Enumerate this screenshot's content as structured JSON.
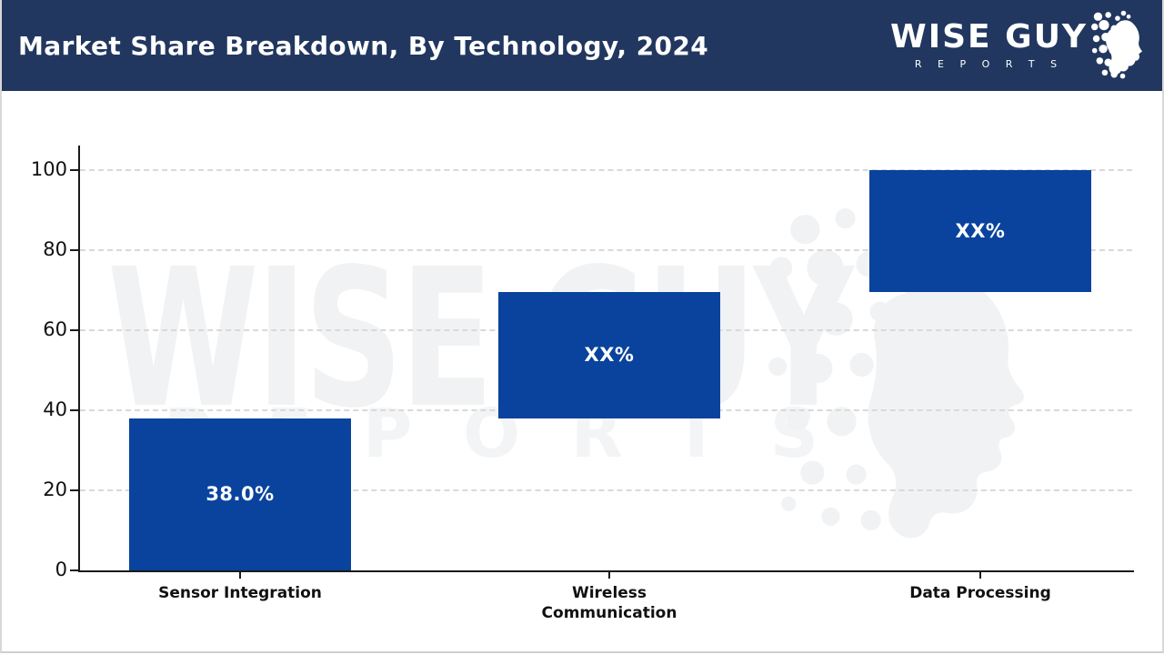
{
  "header": {
    "title": "Market Share Breakdown, By Technology, 2024",
    "logo": {
      "name": "WISE GUY",
      "subtitle": "R E P O R T S"
    },
    "background": "#21375f"
  },
  "watermark": {
    "line1": "WISE GUY",
    "line2": "R E P O R T S"
  },
  "chart_data": {
    "type": "bar",
    "subtype": "floating-waterfall",
    "title": "Market Share Breakdown, By Technology, 2024",
    "categories": [
      "Sensor Integration",
      "Wireless\nCommunication",
      "Data Processing"
    ],
    "bars": [
      {
        "category": "Sensor Integration",
        "start": 0,
        "end": 38,
        "label": "38.0%"
      },
      {
        "category": "Wireless Communication",
        "start": 38,
        "end": 69.5,
        "label": "XX%"
      },
      {
        "category": "Data Processing",
        "start": 69.5,
        "end": 100,
        "label": "XX%"
      }
    ],
    "yticks": [
      0,
      20,
      40,
      60,
      80,
      100
    ],
    "ylim": [
      0,
      106
    ],
    "xlabel": "",
    "ylabel": "",
    "legend": "none",
    "grid": "horizontal-dashed",
    "colors": {
      "bar": "#09439d",
      "bar_label": "#ffffff",
      "axis": "#1a1a1a",
      "gridline": "#d9d9d9",
      "tick_label": "#111111",
      "header_bg": "#21375f",
      "watermark": "#f1f2f4"
    }
  }
}
